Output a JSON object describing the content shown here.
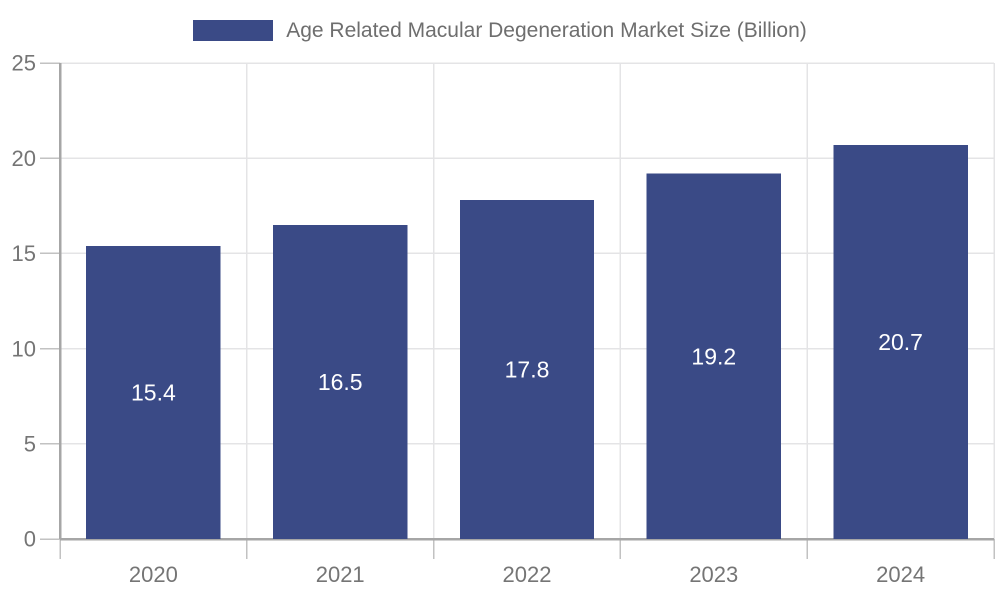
{
  "chart_data": {
    "type": "bar",
    "title": "Age Related Macular Degeneration Market Size (Billion)",
    "categories": [
      "2020",
      "2021",
      "2022",
      "2023",
      "2024"
    ],
    "values": [
      15.4,
      16.5,
      17.8,
      19.2,
      20.7
    ],
    "value_labels": [
      "15.4",
      "16.5",
      "17.8",
      "19.2",
      "20.7"
    ],
    "xlabel": "",
    "ylabel": "",
    "ylim": [
      0,
      25
    ],
    "y_ticks": [
      0,
      5,
      10,
      15,
      20,
      25
    ],
    "grid": true,
    "legend_position": "top-center",
    "colors": {
      "bar": "#3A4A86",
      "value_label": "#ffffff",
      "axis_text": "#757575",
      "legend_text": "#6e6e6e",
      "grid_line": "#e4e4e6",
      "axis_line": "#a6a6a6",
      "tick_line": "#c2c2c2",
      "background": "#ffffff"
    }
  }
}
